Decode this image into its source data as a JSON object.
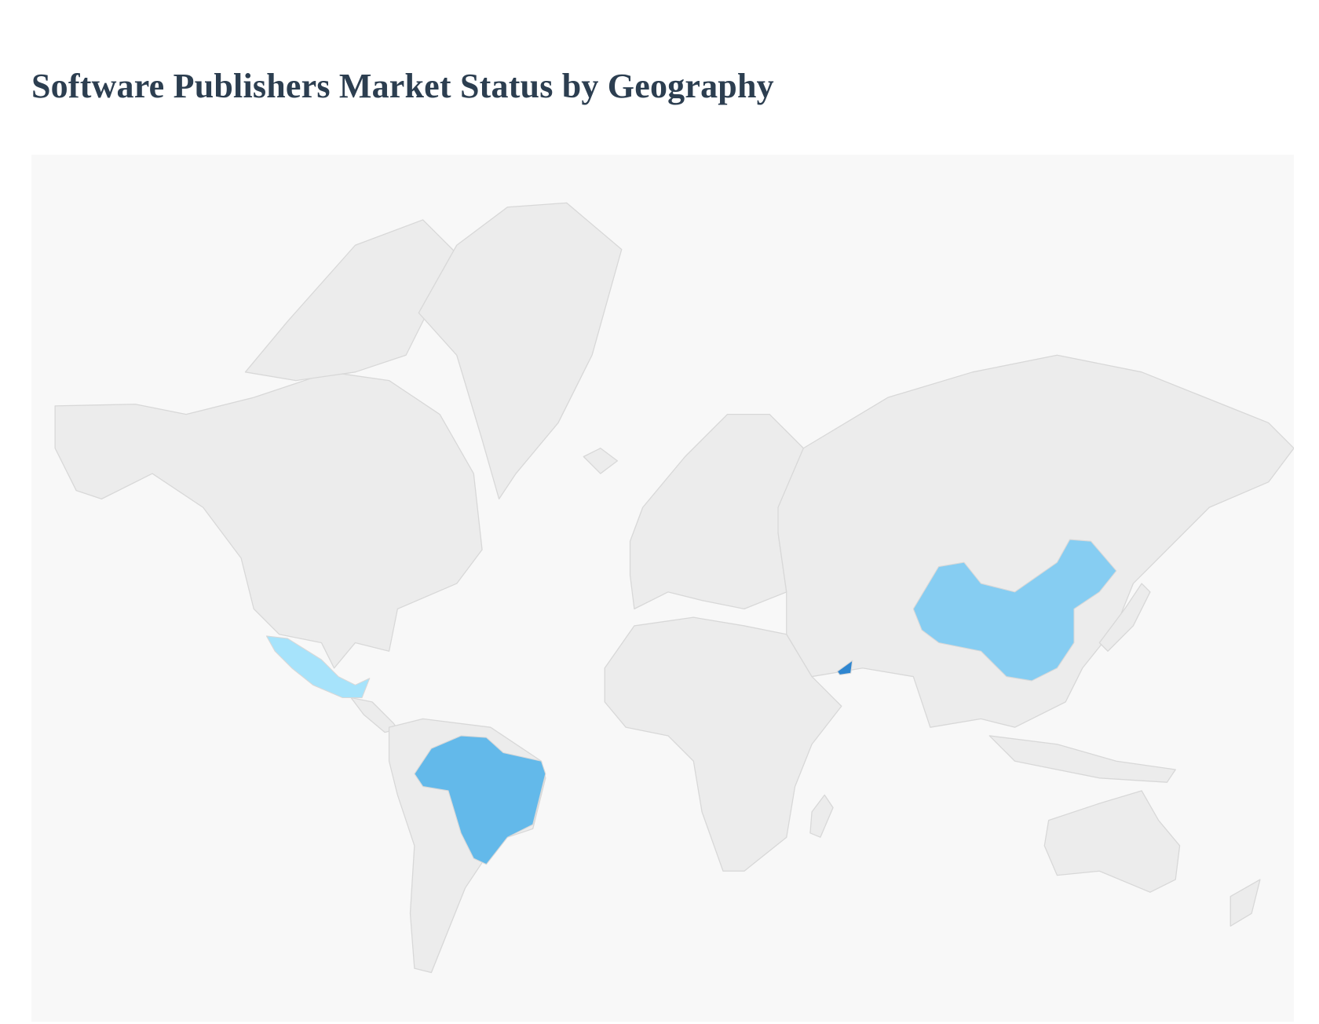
{
  "title": "Software Publishers Market Status by Geography",
  "map": {
    "background": "#f8f8f8",
    "land_color": "#ececec",
    "border_color": "#d8d8d8",
    "highlighted_regions": [
      {
        "id": "mexico",
        "color": "#a6e3fb"
      },
      {
        "id": "brazil",
        "color": "#63b9ea"
      },
      {
        "id": "china",
        "color": "#86cdf2"
      },
      {
        "id": "uae",
        "color": "#2f86d0"
      }
    ]
  }
}
